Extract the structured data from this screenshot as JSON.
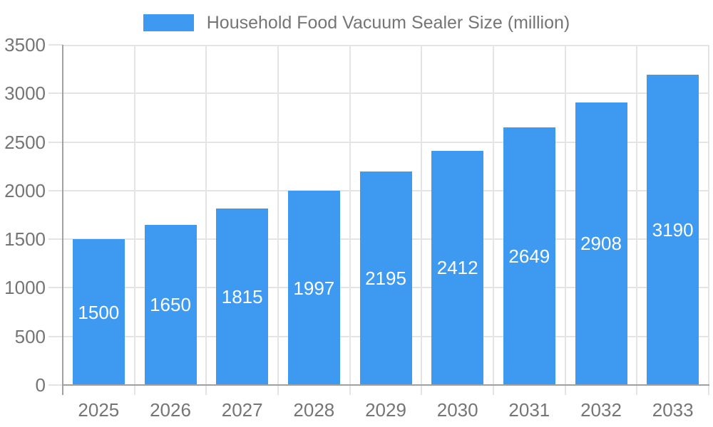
{
  "legend": {
    "label": "Household Food Vacuum Sealer Size (million)",
    "swatch_color": "#3E9AF0"
  },
  "chart_data": {
    "type": "bar",
    "title": "Household Food Vacuum Sealer Size (million)",
    "categories": [
      "2025",
      "2026",
      "2027",
      "2028",
      "2029",
      "2030",
      "2031",
      "2032",
      "2033"
    ],
    "values": [
      1500,
      1650,
      1815,
      1997,
      2195,
      2412,
      2649,
      2908,
      3190
    ],
    "bar_labels": [
      "1500",
      "1650",
      "1815",
      "1997",
      "2195",
      "2412",
      "2649",
      "2908",
      "3190"
    ],
    "xlabel": "",
    "ylabel": "",
    "ylim": [
      0,
      3500
    ],
    "yticks": [
      0,
      500,
      1000,
      1500,
      2000,
      2500,
      3000,
      3500
    ],
    "grid": true,
    "legend_position": "top-center",
    "colors": {
      "bar": "#3E9AF0",
      "bar_label_text": "#ffffff",
      "axis_text": "#757575",
      "grid_line": "#e4e4e4",
      "axis_line": "#a0a0a0",
      "background": "#ffffff"
    }
  }
}
